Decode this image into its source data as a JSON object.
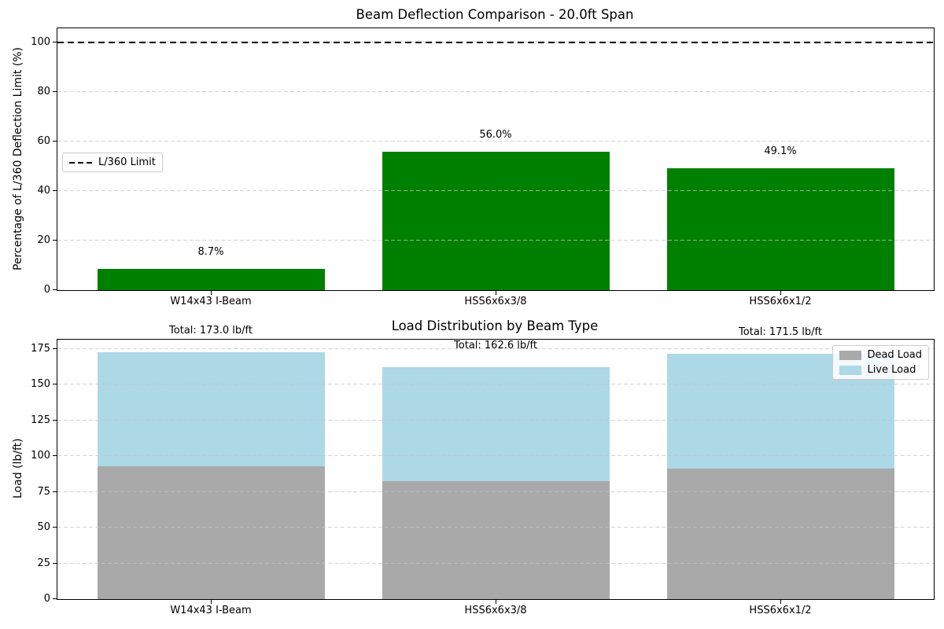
{
  "figure": {
    "background": "#ffffff"
  },
  "chart_data": [
    {
      "type": "bar",
      "title": "Beam Deflection Comparison - 20.0ft Span",
      "ylabel": "Percentage of L/360 Deflection Limit (%)",
      "categories": [
        "W14x43 I-Beam",
        "HSS6x6x3/8",
        "HSS6x6x1/2"
      ],
      "values": [
        8.7,
        56.0,
        49.1
      ],
      "bar_labels": [
        "8.7%",
        "56.0%",
        "49.1%"
      ],
      "bar_color": "#008000",
      "yticks": [
        0,
        20,
        40,
        60,
        80,
        100
      ],
      "ylim": [
        0,
        105.7
      ],
      "grid": "y-dashed",
      "reference_line": {
        "y": 100,
        "color": "#000000",
        "style": "dashed"
      },
      "legend": {
        "position": "center-left",
        "entries": [
          {
            "label": "L/360 Limit",
            "marker": "dashed-line",
            "color": "#000000"
          }
        ]
      }
    },
    {
      "type": "stacked-bar",
      "title": "Load Distribution by Beam Type",
      "ylabel": "Load (lb/ft)",
      "categories": [
        "W14x43 I-Beam",
        "HSS6x6x3/8",
        "HSS6x6x1/2"
      ],
      "series": [
        {
          "name": "Dead Load",
          "color": "#a9a9a9",
          "values": [
            93.0,
            82.6,
            91.5
          ]
        },
        {
          "name": "Live Load",
          "color": "#add8e6",
          "values": [
            80.0,
            80.0,
            80.0
          ]
        }
      ],
      "totals": [
        173.0,
        162.6,
        171.5
      ],
      "total_labels": [
        "Total: 173.0 lb/ft",
        "Total: 162.6 lb/ft",
        "Total: 171.5 lb/ft"
      ],
      "yticks": [
        0,
        25,
        50,
        75,
        100,
        125,
        150,
        175
      ],
      "ylim": [
        0,
        181.6
      ],
      "grid": "y-dashed",
      "legend": {
        "position": "top-right",
        "entries": [
          {
            "label": "Dead Load",
            "marker": "patch",
            "color": "#a9a9a9"
          },
          {
            "label": "Live Load",
            "marker": "patch",
            "color": "#add8e6"
          }
        ]
      }
    }
  ]
}
